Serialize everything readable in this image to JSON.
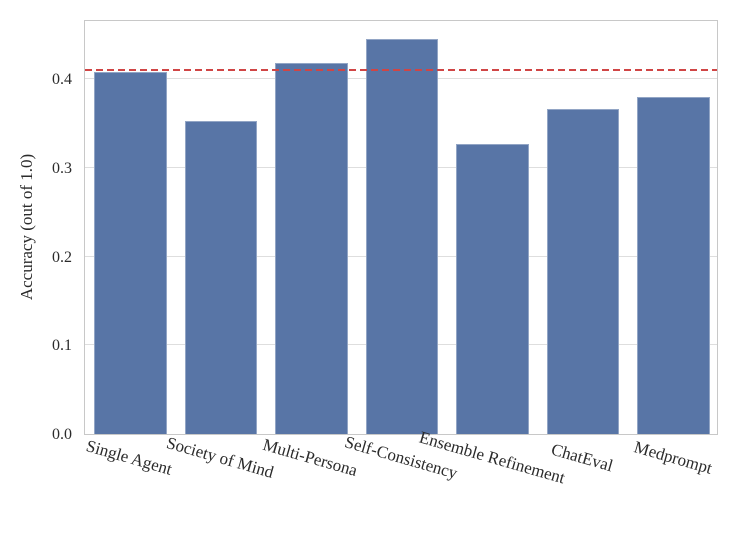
{
  "chart_data": {
    "type": "bar",
    "title": "",
    "categories": [
      "Single Agent",
      "Society of Mind",
      "Multi-Persona",
      "Self-Consistency",
      "Ensemble Refinement",
      "ChatEval",
      "Medprompt"
    ],
    "values": [
      0.408,
      0.353,
      0.418,
      0.445,
      0.327,
      0.366,
      0.38
    ],
    "xlabel": "",
    "ylabel": "Accuracy (out of 1.0)",
    "yticks": [
      0.0,
      0.1,
      0.2,
      0.3,
      0.4
    ],
    "ytick_labels": [
      "0.0",
      "0.1",
      "0.2",
      "0.3",
      "0.4"
    ],
    "ylim": [
      0,
      0.468
    ],
    "grid": true,
    "legend_position": "none",
    "bar_color": "#5875a6",
    "bar_relative_width": 0.8,
    "x_label_rotation_deg": 16,
    "reference_line": {
      "value": 0.411,
      "style": "dashed",
      "color": "#d04545"
    },
    "grid_color": "#dedede",
    "spine_color": "#c8c8c8",
    "text_color": "#2b2b2b",
    "background_color": "#ffffff"
  }
}
